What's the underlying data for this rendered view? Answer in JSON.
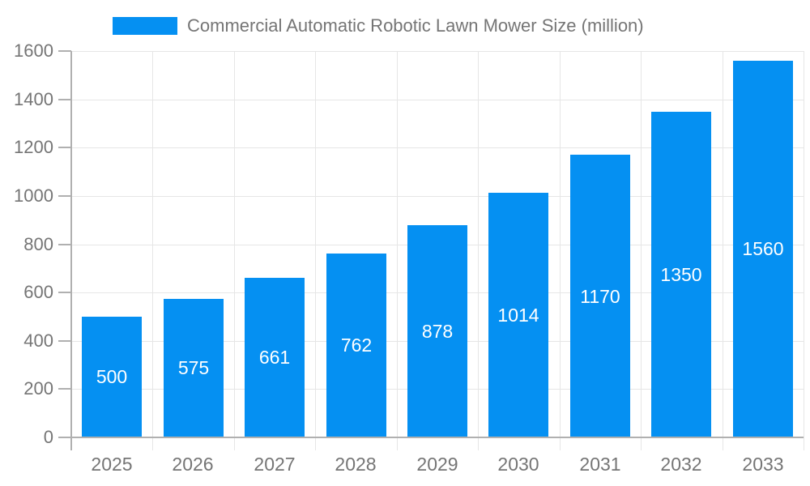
{
  "legend": {
    "label": "Commercial Automatic Robotic Lawn Mower Size (million)"
  },
  "chart_data": {
    "type": "bar",
    "title": "Commercial Automatic Robotic Lawn Mower Size (million)",
    "categories": [
      "2025",
      "2026",
      "2027",
      "2028",
      "2029",
      "2030",
      "2031",
      "2032",
      "2033"
    ],
    "values": [
      500,
      575,
      661,
      762,
      878,
      1014,
      1170,
      1350,
      1560
    ],
    "xlabel": "",
    "ylabel": "",
    "ylim": [
      0,
      1600
    ],
    "ytick_step": 200,
    "grid": "on",
    "legend_position": "top"
  },
  "colors": {
    "bar": "#0590f2",
    "gridline": "#e6e6e6",
    "axis": "#b0b0b0",
    "tick_text": "#757575",
    "bar_label_text": "#ffffff"
  }
}
